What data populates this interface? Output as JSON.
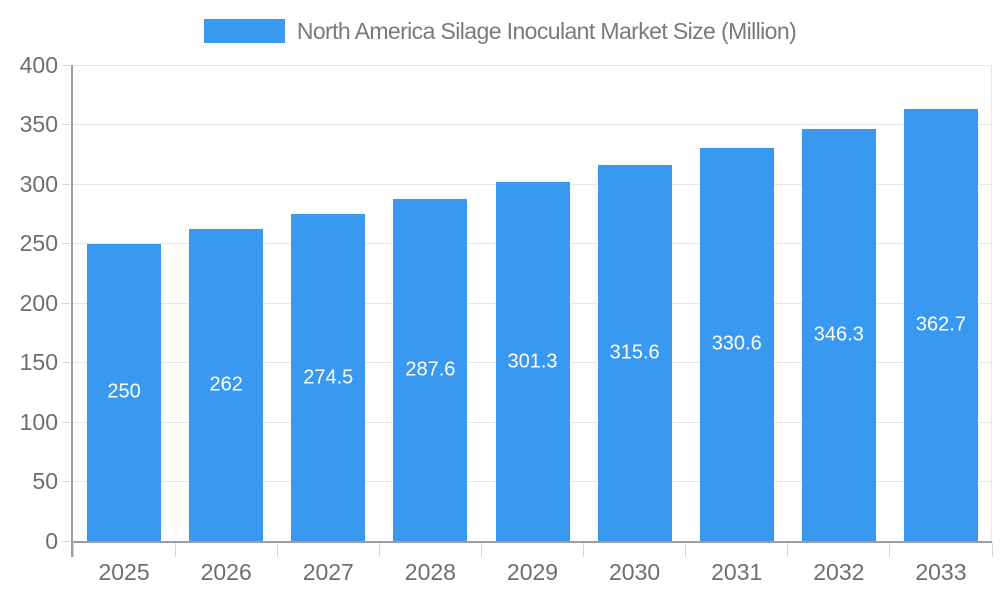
{
  "legend": {
    "label": "North America Silage Inoculant Market Size (Million)"
  },
  "chart_data": {
    "type": "bar",
    "title": "North America Silage Inoculant Market Size (Million)",
    "categories": [
      "2025",
      "2026",
      "2027",
      "2028",
      "2029",
      "2030",
      "2031",
      "2032",
      "2033"
    ],
    "values": [
      250,
      262,
      274.5,
      287.6,
      301.3,
      315.6,
      330.6,
      346.3,
      362.7
    ],
    "value_labels": [
      "250",
      "262",
      "274.5",
      "287.6",
      "301.3",
      "315.6",
      "330.6",
      "346.3",
      "362.7"
    ],
    "xlabel": "",
    "ylabel": "",
    "ylim": [
      0,
      400
    ],
    "ytick_step": 50,
    "ytick_labels": [
      "0",
      "50",
      "100",
      "150",
      "200",
      "250",
      "300",
      "350",
      "400"
    ],
    "grid": true,
    "legend_position": "top"
  },
  "colors": {
    "bar": "#3999f0",
    "grid_line": "#e8e8e8",
    "axis_line": "#9e9e9e",
    "tick": "#d6d6d6",
    "axis_text": "#6e6e6e",
    "legend_text": "#7a7a7a",
    "value_text": "#ffffff",
    "background": "#ffffff"
  }
}
